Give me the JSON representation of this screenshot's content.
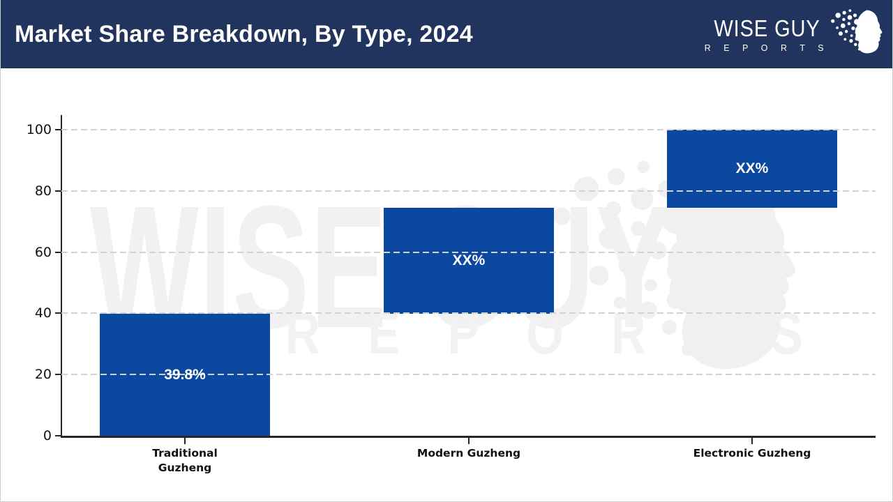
{
  "header": {
    "bg_color": "#20345E",
    "title": "Market Share Breakdown, By Type, 2024",
    "logo": {
      "wordmark": "WISE GUY",
      "sub": "R E P O R T S",
      "face_icon": "dotted-head-profile"
    }
  },
  "watermark": {
    "wordmark": "WISE GUY",
    "sub": "R E P O R T S",
    "face_icon": "dotted-head-profile"
  },
  "chart_data": {
    "type": "bar",
    "subtype": "stacked-waterfall-percent",
    "title": "Market Share Breakdown, By Type, 2024",
    "categories": [
      "Traditional Guzheng",
      "Modern Guzheng",
      "Electronic Guzheng"
    ],
    "category_label_lines": [
      [
        "Traditional",
        "Guzheng"
      ],
      [
        "Modern Guzheng"
      ],
      [
        "Electronic Guzheng"
      ]
    ],
    "bars": [
      {
        "category": "Traditional Guzheng",
        "start": 0,
        "end": 39.8,
        "value": 39.8,
        "label": "39.8%"
      },
      {
        "category": "Modern Guzheng",
        "start": 39.8,
        "end": 74.6,
        "value": 34.8,
        "label": "XX%"
      },
      {
        "category": "Electronic Guzheng",
        "start": 74.6,
        "end": 100,
        "value": 25.4,
        "label": "XX%"
      }
    ],
    "ylim": [
      0,
      100
    ],
    "yticks": [
      0,
      20,
      40,
      60,
      80,
      100
    ],
    "xlabel": "",
    "ylabel": "",
    "grid": "horizontal dashed, drawn over bars",
    "bar_color": "#0B49A0",
    "bar_label_color": "#FFFFFF",
    "legend": null
  }
}
